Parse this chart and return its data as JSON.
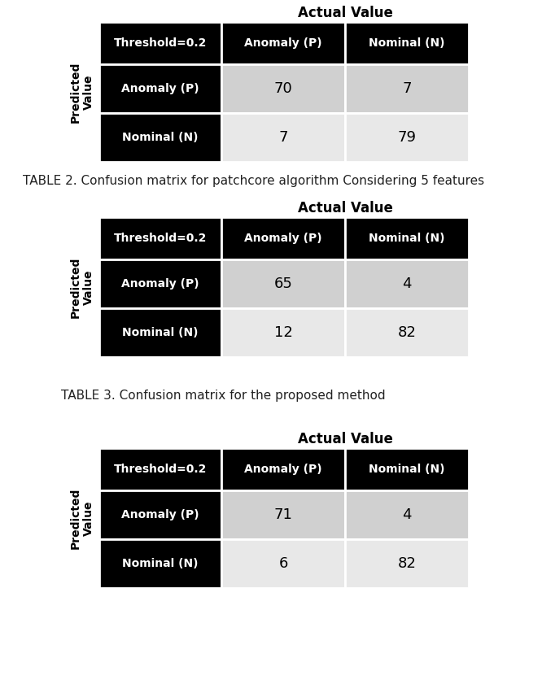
{
  "tables": [
    {
      "caption": null,
      "actual_value_label": "Actual Value",
      "header": [
        "Threshold=0.2",
        "Anomaly (P)",
        "Nominal (N)"
      ],
      "rows": [
        [
          "Anomaly (P)",
          "70",
          "7"
        ],
        [
          "Nominal (N)",
          "7",
          "79"
        ]
      ],
      "predicted_label": "Predicted\nValue"
    },
    {
      "caption": "TABLE 2. Confusion matrix for patchcore algorithm Considering 5 features",
      "actual_value_label": "Actual Value",
      "header": [
        "Threshold=0.2",
        "Anomaly (P)",
        "Nominal (N)"
      ],
      "rows": [
        [
          "Anomaly (P)",
          "65",
          "4"
        ],
        [
          "Nominal (N)",
          "12",
          "82"
        ]
      ],
      "predicted_label": "Predicted\nValue"
    },
    {
      "caption": "TABLE 3. Confusion matrix for the proposed method",
      "actual_value_label": "Actual Value",
      "header": [
        "Threshold=0.2",
        "Anomaly (P)",
        "Nominal (N)"
      ],
      "rows": [
        [
          "Anomaly (P)",
          "71",
          "4"
        ],
        [
          "Nominal (N)",
          "6",
          "82"
        ]
      ],
      "predicted_label": "Predicted\nValue"
    }
  ],
  "header_bg": "#000000",
  "header_fg": "#ffffff",
  "row0_bg": "#d0d0d0",
  "row1_bg": "#e8e8e8",
  "cell_fg": "#000000",
  "background": "#ffffff",
  "caption_color": "#222222",
  "actual_value_color": "#000000"
}
